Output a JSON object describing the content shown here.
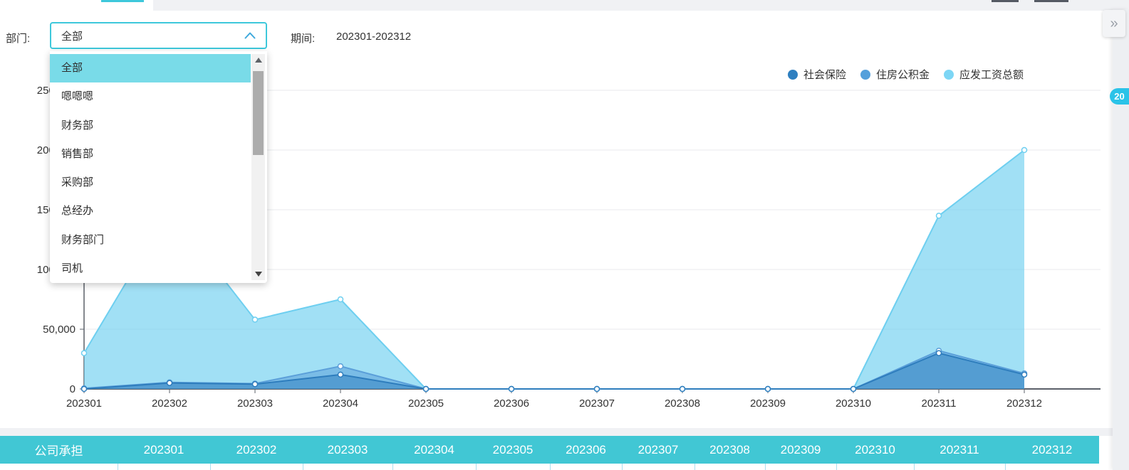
{
  "filters": {
    "department_label": "部门:",
    "department_value": "全部",
    "period_label": "期间:",
    "period_value": "202301-202312"
  },
  "dropdown": {
    "items": [
      "全部",
      "嗯嗯嗯",
      "财务部",
      "销售部",
      "采购部",
      "总经办",
      "财务部门",
      "司机"
    ],
    "selected_index": 0,
    "highlight_color": "#79DBE8"
  },
  "legend": [
    {
      "label": "社会保险",
      "color": "#2E7FC0"
    },
    {
      "label": "住房公积金",
      "color": "#54A0DB"
    },
    {
      "label": "应发工资总额",
      "color": "#7DD6F5"
    }
  ],
  "chart_data": {
    "type": "area",
    "x": [
      "202301",
      "202302",
      "202303",
      "202304",
      "202305",
      "202306",
      "202307",
      "202308",
      "202309",
      "202310",
      "202311",
      "202312"
    ],
    "series": [
      {
        "name": "社会保险",
        "color": "#2E7DBD",
        "fill_opacity": 0.5,
        "values": [
          0,
          5000,
          4000,
          12000,
          0,
          0,
          0,
          0,
          0,
          0,
          30000,
          12000
        ]
      },
      {
        "name": "住房公积金",
        "color": "#5B9FD9",
        "fill_opacity": 0.55,
        "values": [
          500,
          5500,
          4500,
          19000,
          0,
          0,
          0,
          0,
          0,
          0,
          32000,
          13000
        ]
      },
      {
        "name": "应发工资总额",
        "color": "#6ECFF0",
        "fill_opacity": 0.65,
        "values": [
          30000,
          150000,
          58000,
          75000,
          0,
          0,
          0,
          0,
          0,
          0,
          145000,
          200000
        ]
      }
    ],
    "ylim": [
      0,
      250000
    ],
    "yticks": [
      "0",
      "50,000",
      "100,000",
      "150,000",
      "200,000",
      "250,000"
    ],
    "grid": true,
    "legend_position": "top-right",
    "axis_color": "#5B6069",
    "grid_color": "#E8EAED",
    "label_color": "#333333"
  },
  "right_panel": {
    "expand_icon": "chevron-double-right",
    "expand_glyph": "»",
    "badge": "20"
  },
  "table": {
    "header": [
      "公司承担",
      "202301",
      "202302",
      "202303",
      "202304",
      "202305",
      "202306",
      "202307",
      "202308",
      "202309",
      "202310",
      "202311",
      "202312"
    ],
    "header_bg": "#41C7D4"
  },
  "colors": {
    "accent_cyan": "#3EC8DB",
    "topbar_gray": "#F0F1F4"
  }
}
